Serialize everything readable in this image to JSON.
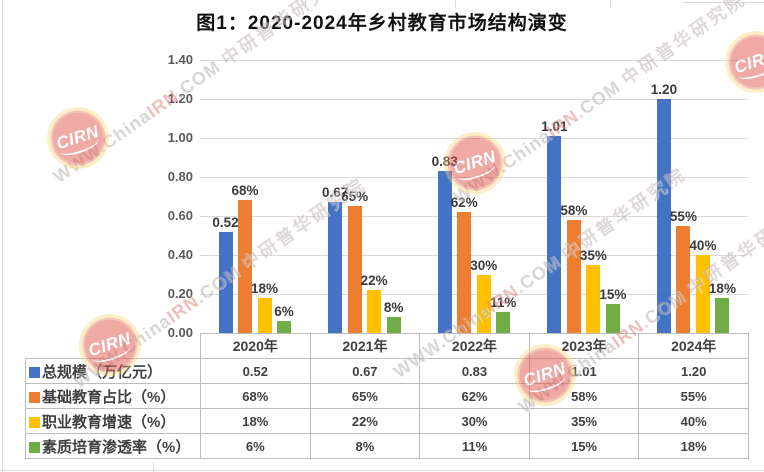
{
  "title": "图1：2020-2024年乡村教育市场结构演变",
  "watermark": {
    "logo_text": "CIRN",
    "url_prefix": "WWW.China",
    "url_mid": "IRN",
    "url_suffix": ".COM",
    "cn_text": "中研普华研究院"
  },
  "chart_data": {
    "type": "bar",
    "title": "图1：2020-2024年乡村教育市场结构演变",
    "categories": [
      "2020年",
      "2021年",
      "2022年",
      "2023年",
      "2024年"
    ],
    "series": [
      {
        "name": "总规模（万亿元）",
        "color": "#4472C4",
        "values": [
          0.52,
          0.67,
          0.83,
          1.01,
          1.2
        ],
        "labels": [
          "0.52",
          "0.67",
          "0.83",
          "1.01",
          "1.20"
        ]
      },
      {
        "name": "基础教育占比（%）",
        "color": "#ED7D31",
        "values": [
          0.68,
          0.65,
          0.62,
          0.58,
          0.55
        ],
        "labels": [
          "68%",
          "65%",
          "62%",
          "58%",
          "55%"
        ]
      },
      {
        "name": "职业教育增速（%）",
        "color": "#FFC000",
        "values": [
          0.18,
          0.22,
          0.3,
          0.35,
          0.4
        ],
        "labels": [
          "18%",
          "22%",
          "30%",
          "35%",
          "40%"
        ]
      },
      {
        "name": "素质培育渗透率（%）",
        "color": "#70AD47",
        "values": [
          0.06,
          0.08,
          0.11,
          0.15,
          0.18
        ],
        "labels": [
          "6%",
          "8%",
          "11%",
          "15%",
          "18%"
        ]
      }
    ],
    "y_ticks": [
      "1.40",
      "1.20",
      "1.00",
      "0.80",
      "0.60",
      "0.40",
      "0.20",
      "0.00"
    ],
    "ylim": [
      0,
      1.4
    ],
    "grid": true,
    "legend_position": "data-table-below-plot",
    "xlabel": "",
    "ylabel": ""
  }
}
